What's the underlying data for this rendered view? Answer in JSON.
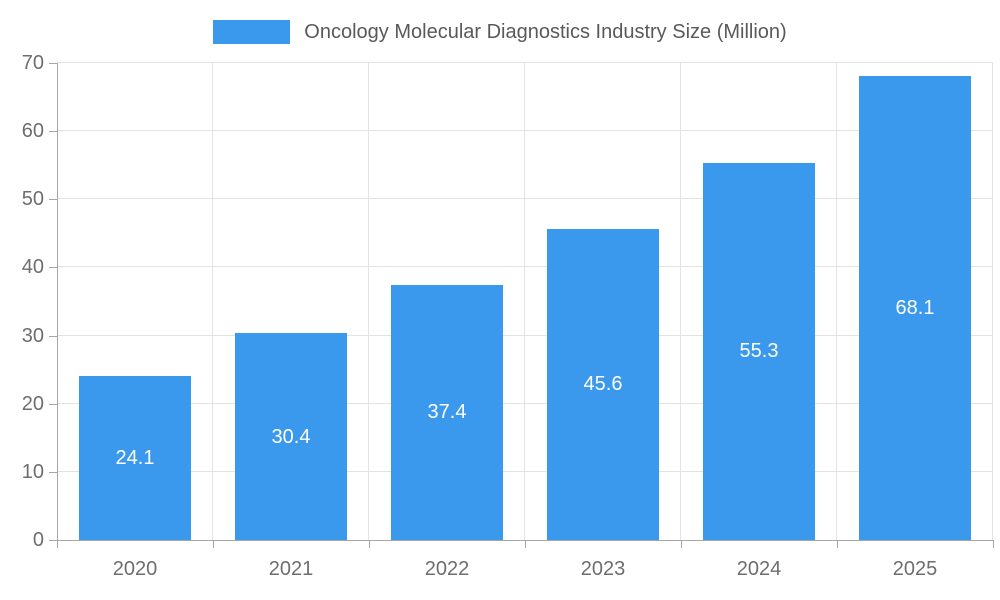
{
  "chart_data": {
    "type": "bar",
    "title": "Oncology Molecular Diagnostics Industry Size (Million)",
    "legend": {
      "label": "Oncology Molecular Diagnostics Industry Size (Million)",
      "position": "top"
    },
    "categories": [
      "2020",
      "2021",
      "2022",
      "2023",
      "2024",
      "2025"
    ],
    "values": [
      24.1,
      30.4,
      37.4,
      45.6,
      55.3,
      68.1
    ],
    "value_labels": [
      "24.1",
      "30.4",
      "37.4",
      "45.6",
      "55.3",
      "68.1"
    ],
    "xlabel": "",
    "ylabel": "",
    "ylim": [
      0,
      70
    ],
    "yticks": [
      0,
      10,
      20,
      30,
      40,
      50,
      60,
      70
    ],
    "grid": true,
    "colors": {
      "bar": "#3A99EC",
      "gridline": "#E3E3E3",
      "axis_line": "#A6A6A6",
      "tick_label": "#6E6E6E",
      "title": "#595959",
      "value_label": "#FFFFFF",
      "background": "#FFFFFF"
    }
  }
}
